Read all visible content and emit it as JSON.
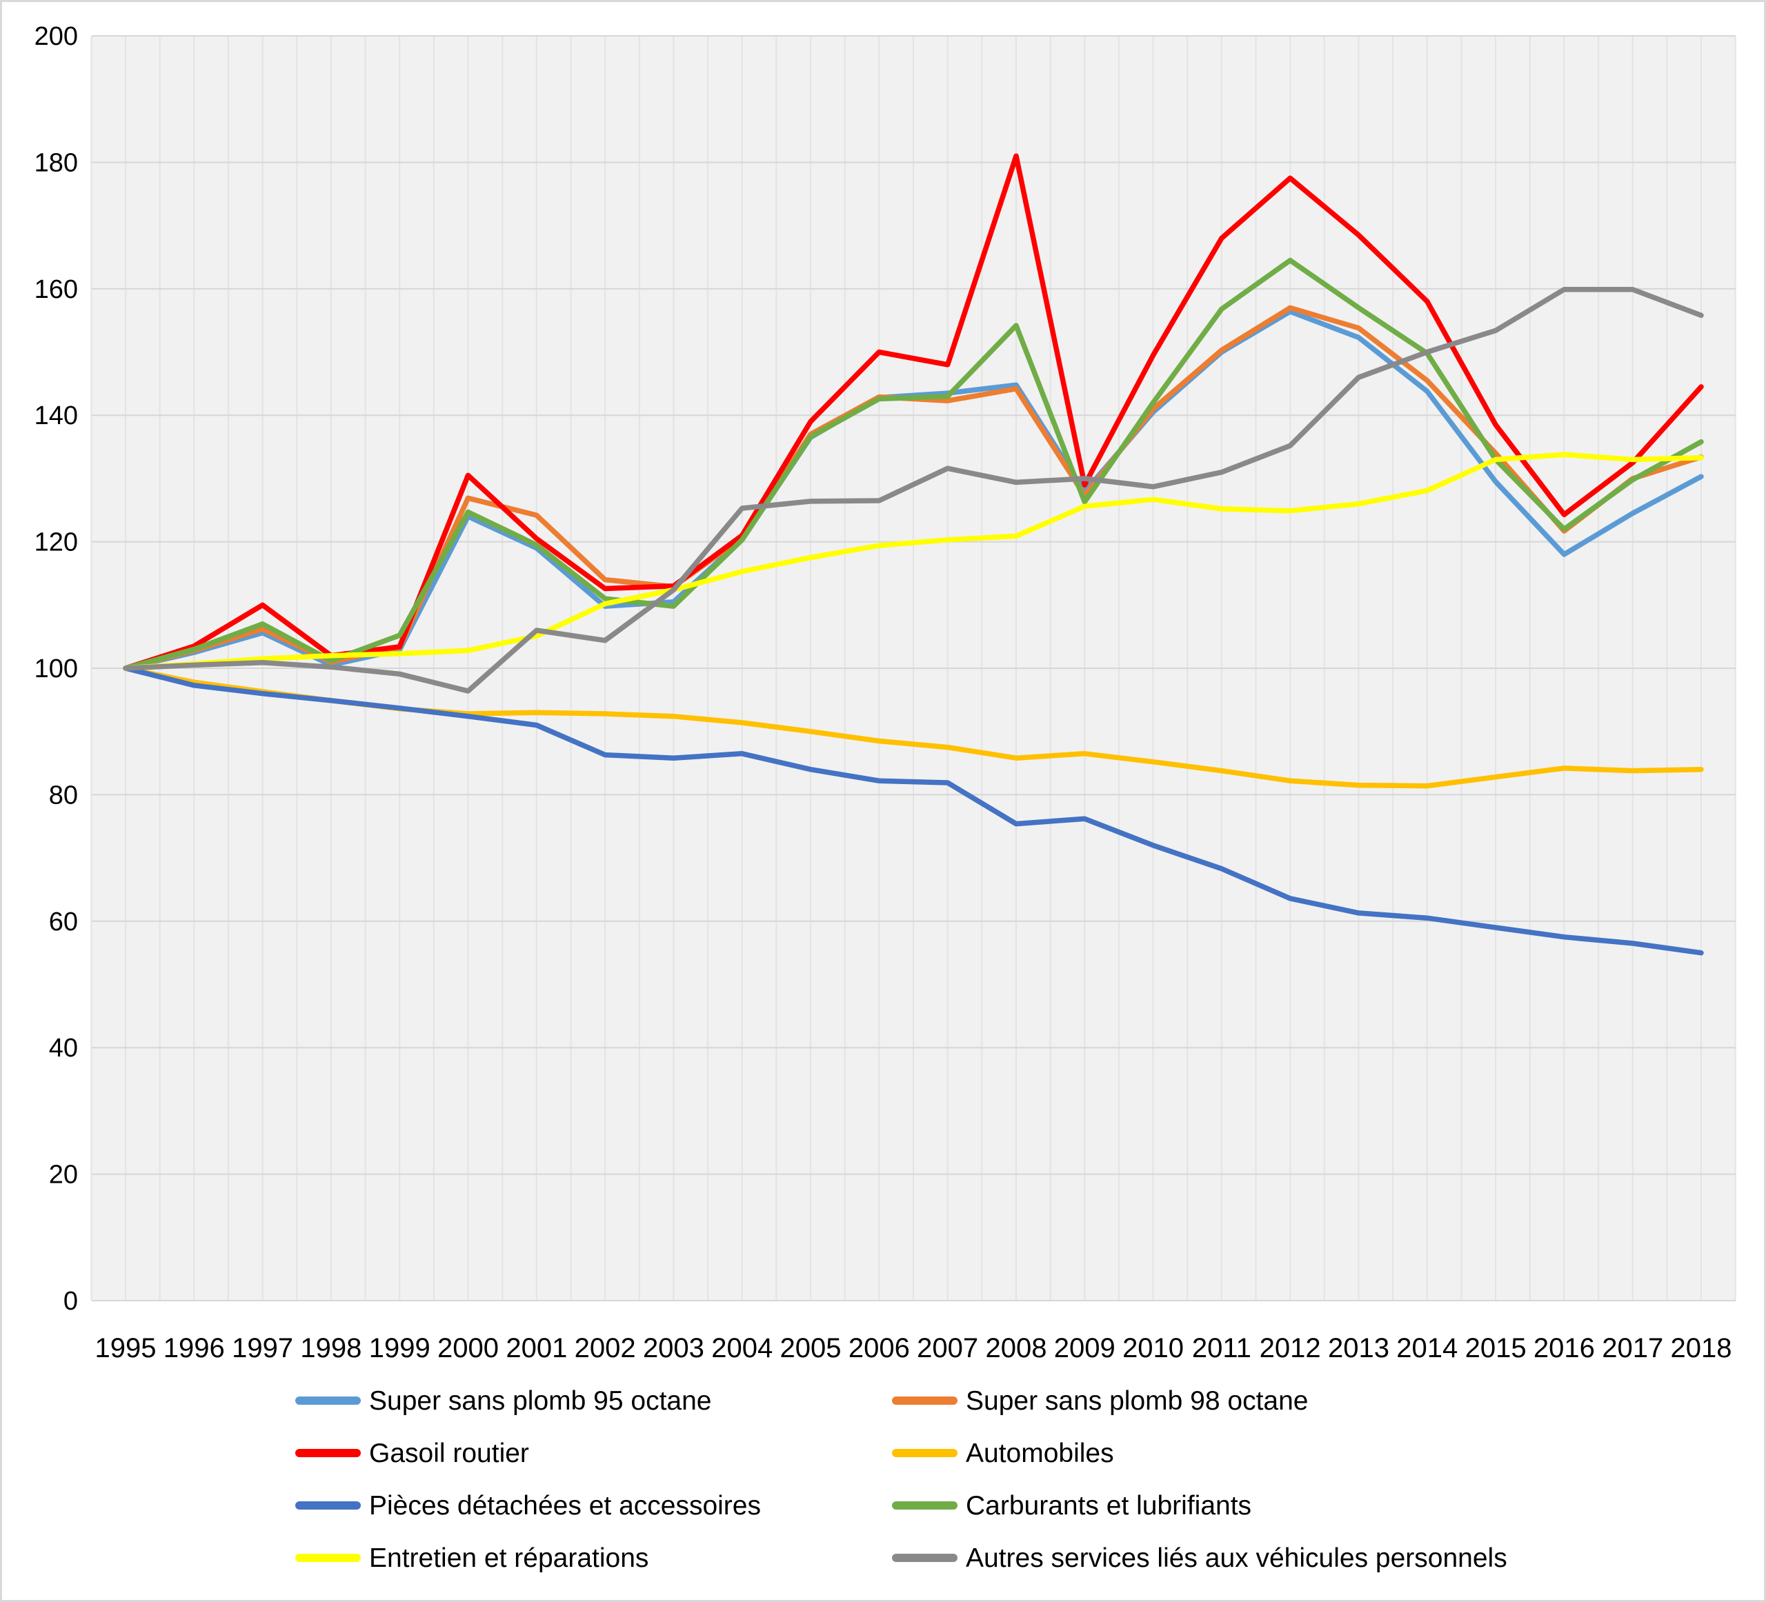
{
  "chart_data": {
    "type": "line",
    "title": "",
    "xlabel": "",
    "ylabel": "",
    "x": [
      "1995",
      "1996",
      "1997",
      "1998",
      "1999",
      "2000",
      "2001",
      "2002",
      "2003",
      "2004",
      "2005",
      "2006",
      "2007",
      "2008",
      "2009",
      "2010",
      "2011",
      "2012",
      "2013",
      "2014",
      "2015",
      "2016",
      "2017",
      "2018"
    ],
    "ylim": [
      0,
      200
    ],
    "y_ticks": [
      0,
      20,
      40,
      60,
      80,
      100,
      120,
      140,
      160,
      180,
      200
    ],
    "grid": {
      "horizontal": true,
      "vertical": true,
      "vertical_per_half_category": true
    },
    "legend_position": "bottom",
    "plot_background": "#f1f1f1",
    "series": [
      {
        "name": "Super sans plomb 95 octane",
        "color": "#5B9BD5",
        "values": [
          100,
          102.5,
          105.6,
          100.5,
          102.9,
          124,
          119,
          109.8,
          110.5,
          120.3,
          136.5,
          142.8,
          143.5,
          144.8,
          127.9,
          140.5,
          150,
          156.4,
          152.3,
          143.8,
          129.5,
          118,
          124.5,
          130.3
        ]
      },
      {
        "name": "Super sans plomb 98 octane",
        "color": "#ED7D31",
        "values": [
          100,
          102.8,
          106.2,
          101,
          103.3,
          126.9,
          124.2,
          114,
          112.9,
          120.6,
          137,
          142.9,
          142.3,
          144.2,
          127.3,
          141,
          150.3,
          157,
          153.8,
          145.5,
          134,
          121.7,
          130,
          133.4
        ]
      },
      {
        "name": "Gasoil routier",
        "color": "#FF0000",
        "values": [
          100,
          103.5,
          110,
          102,
          103.4,
          130.5,
          120.5,
          112.6,
          113,
          121,
          139,
          150,
          148,
          181,
          129,
          149.5,
          168,
          177.5,
          168.5,
          158,
          138.5,
          124.3,
          132.5,
          144.5
        ]
      },
      {
        "name": "Automobiles",
        "color": "#FFC000",
        "values": [
          100,
          97.8,
          96.3,
          94.9,
          93.6,
          92.8,
          93,
          92.8,
          92.4,
          91.4,
          90,
          88.5,
          87.5,
          85.8,
          86.5,
          85.2,
          83.8,
          82.2,
          81.5,
          81.4,
          82.8,
          84.2,
          83.8,
          84
        ]
      },
      {
        "name": "Pièces détachées et accessoires",
        "color": "#4472C4",
        "values": [
          100,
          97.3,
          96,
          94.9,
          93.7,
          92.4,
          91,
          86.3,
          85.8,
          86.5,
          84,
          82.2,
          81.9,
          75.4,
          76.2,
          72,
          68.3,
          63.6,
          61.3,
          60.5,
          59,
          57.5,
          56.5,
          55
        ]
      },
      {
        "name": "Carburants et lubrifiants",
        "color": "#70AD47",
        "values": [
          100,
          103,
          107,
          101.2,
          105.2,
          124.7,
          119.5,
          111,
          109.8,
          120.3,
          136.6,
          142.6,
          143,
          154.2,
          126.3,
          142,
          156.8,
          164.5,
          157,
          149.8,
          133,
          122,
          129.8,
          135.8
        ]
      },
      {
        "name": "Entretien et réparations",
        "color": "#FFFF00",
        "values": [
          100,
          100.7,
          101.5,
          102,
          102.3,
          102.8,
          105.1,
          110.2,
          112.4,
          115.3,
          117.5,
          119.4,
          120.3,
          120.9,
          125.6,
          126.7,
          125.2,
          124.9,
          126,
          128.1,
          133,
          133.8,
          133,
          133.3
        ]
      },
      {
        "name": "Autres services liés aux véhicules personnels",
        "color": "#898989",
        "values": [
          100,
          100.5,
          100.9,
          100.2,
          99.1,
          96.4,
          106,
          104.4,
          112.4,
          125.3,
          126.4,
          126.5,
          131.6,
          129.4,
          130,
          128.7,
          131,
          135.2,
          146,
          150,
          153.4,
          159.9,
          159.9,
          155.8
        ]
      }
    ]
  }
}
